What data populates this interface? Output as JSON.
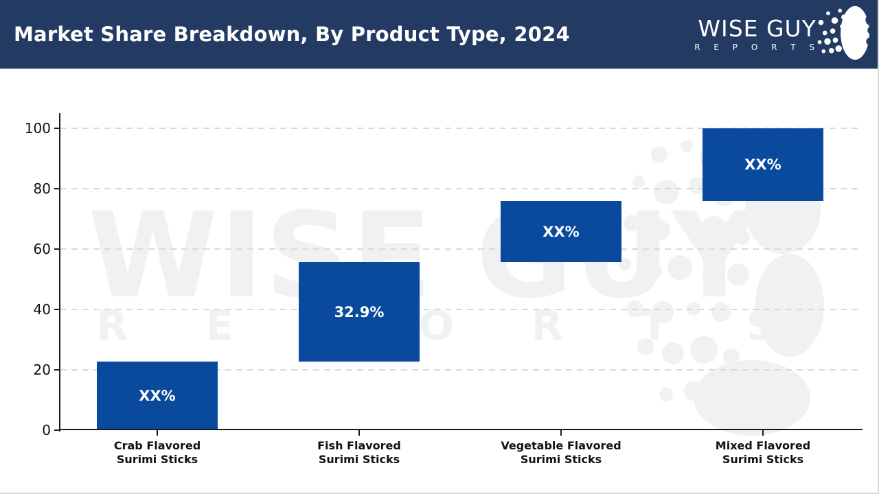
{
  "header": {
    "title": "Market Share Breakdown, By Product Type, 2024",
    "logo": {
      "name": "WISE GUY",
      "tagline": "R E P O R T S"
    }
  },
  "watermark": {
    "line1": "WISE GUY",
    "line2": "R E P O R T S"
  },
  "colors": {
    "header_bg": "#233a63",
    "bar": "#0a4a9c",
    "grid": "#d9d9d9",
    "axis": "#1a1a1a",
    "watermark": "#f1f1f3",
    "bar_label_text": "#ffffff"
  },
  "chart_data": {
    "type": "bar",
    "subtype": "floating-segment (waterfall-style stacked market share)",
    "title": "Market Share Breakdown, By Product Type, 2024",
    "xlabel": "",
    "ylabel": "",
    "ylim": [
      0,
      105
    ],
    "yticks": [
      0,
      20,
      40,
      60,
      80,
      100
    ],
    "grid": "horizontal dashed",
    "legend": "none",
    "bar_color": "#0a4a9c",
    "bars": [
      {
        "category": "Crab Flavored Surimi Sticks",
        "category_lines": [
          "Crab Flavored",
          "Surimi Sticks"
        ],
        "label": "XX%",
        "start": 0,
        "end": 22.7
      },
      {
        "category": "Fish Flavored Surimi Sticks",
        "category_lines": [
          "Fish Flavored",
          "Surimi Sticks"
        ],
        "label": "32.9%",
        "start": 22.7,
        "end": 55.6
      },
      {
        "category": "Vegetable Flavored Surimi Sticks",
        "category_lines": [
          "Vegetable Flavored",
          "Surimi Sticks"
        ],
        "label": "XX%",
        "start": 55.6,
        "end": 75.8
      },
      {
        "category": "Mixed Flavored Surimi Sticks",
        "category_lines": [
          "Mixed Flavored",
          "Surimi Sticks"
        ],
        "label": "XX%",
        "start": 75.8,
        "end": 100
      }
    ]
  }
}
